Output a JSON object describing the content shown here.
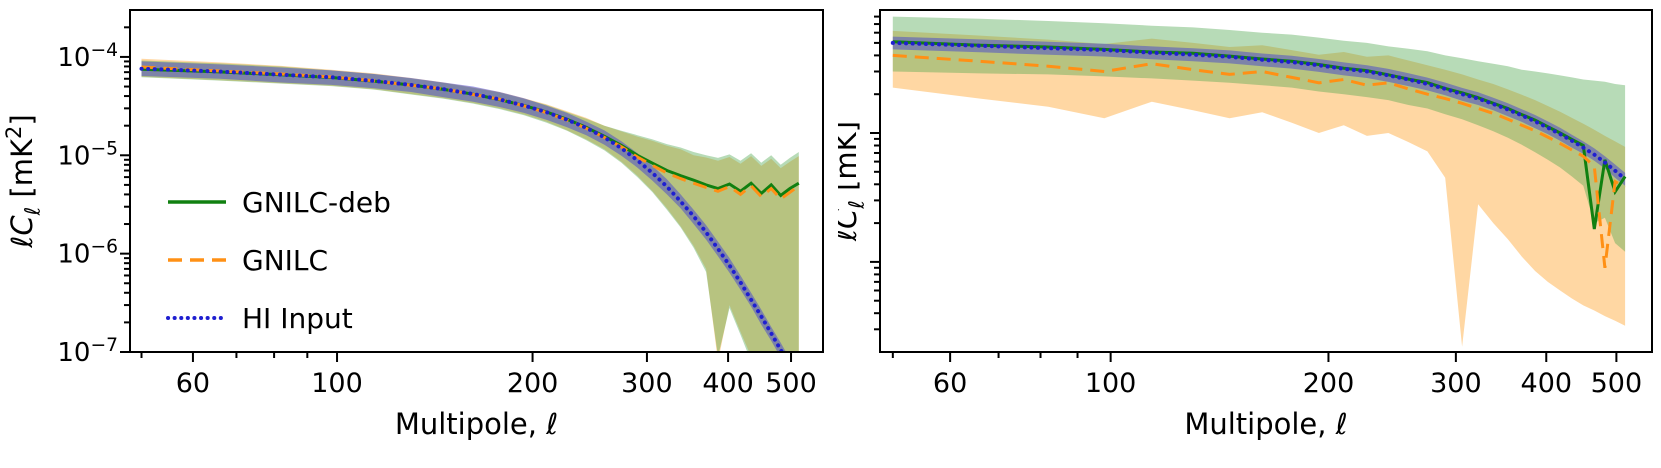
{
  "figure": {
    "background": "#ffffff",
    "description_colors": {
      "gnilc_deb": "#108010",
      "gnilc": "#ff9015",
      "hi_input": "#1f1fd0",
      "band_green": "#4ca64c",
      "band_orange": "#ffa733",
      "band_blue": "#4444d0"
    }
  },
  "chart_data": [
    {
      "type": "line",
      "title": "",
      "xlabel": "Multipole, ℓ",
      "ylabel": "ℓCℓ [mK²]",
      "xlabel_parts": [
        {
          "t": "Multipole, "
        },
        {
          "t": "ℓ",
          "style": "italic"
        }
      ],
      "ylabel_parts": [
        {
          "t": "ℓ",
          "style": "italic"
        },
        {
          "t": "C",
          "style": "italic"
        },
        {
          "t": "ℓ",
          "style": "sub"
        },
        {
          "t": " [mK"
        },
        {
          "t": "2",
          "style": "sup"
        },
        {
          "t": "]"
        }
      ],
      "xscale": "log",
      "yscale": "log",
      "xlim": [
        48,
        560
      ],
      "ylim": [
        1e-07,
        0.0003
      ],
      "xticks": [
        60,
        100,
        200,
        300,
        400,
        500
      ],
      "xminor": [
        50,
        70,
        80,
        90
      ],
      "ytick_exponents": [
        -7,
        -6,
        -5,
        -4
      ],
      "legend": {
        "show": true,
        "position": "lower left",
        "items": [
          "GNILC-deb",
          "GNILC",
          "HI Input"
        ]
      },
      "x": [
        50,
        66,
        82,
        98,
        114,
        130,
        146,
        162,
        178,
        194,
        210,
        226,
        242,
        258,
        274,
        290,
        306,
        322,
        338,
        354,
        370,
        386,
        402,
        418,
        434,
        450,
        466,
        482,
        498,
        514
      ],
      "series": [
        {
          "name": "GNILC-deb",
          "color": "#108010",
          "dash": "solid",
          "values": [
            7.5e-05,
            7.05e-05,
            6.58e-05,
            6.18e-05,
            5.68e-05,
            5.18e-05,
            4.68e-05,
            4.18e-05,
            3.68e-05,
            3.2e-05,
            2.76e-05,
            2.32e-05,
            1.92e-05,
            1.56e-05,
            1.26e-05,
            1e-05,
            8.3e-06,
            7e-06,
            6.2e-06,
            5.6e-06,
            5e-06,
            4.6e-06,
            5.1e-06,
            4.3e-06,
            5.2e-06,
            4.1e-06,
            5e-06,
            3.9e-06,
            4.6e-06,
            5.2e-06
          ]
        },
        {
          "name": "GNILC",
          "color": "#ff9015",
          "dash": "dashed",
          "values": [
            7.9e-05,
            7.2e-05,
            6.7e-05,
            6.25e-05,
            5.72e-05,
            5.15e-05,
            4.72e-05,
            4.15e-05,
            3.72e-05,
            3.18e-05,
            2.72e-05,
            2.28e-05,
            1.88e-05,
            1.52e-05,
            1.22e-05,
            9.6e-06,
            7.9e-06,
            6.6e-06,
            5.8e-06,
            5.2e-06,
            4.7e-06,
            4.3e-06,
            4.8e-06,
            4e-06,
            4.9e-06,
            3.8e-06,
            4.6e-06,
            3.6e-06,
            4.2e-06,
            4.9e-06
          ]
        },
        {
          "name": "HI Input",
          "color": "#1f1fd0",
          "dash": "dotted",
          "values": [
            7.6e-05,
            7.1e-05,
            6.6e-05,
            6.2e-05,
            5.7e-05,
            5.2e-05,
            4.7e-05,
            4.2e-05,
            3.7e-05,
            3.2e-05,
            2.75e-05,
            2.3e-05,
            1.9e-05,
            1.52e-05,
            1.18e-05,
            8.9e-06,
            6.6e-06,
            4.8e-06,
            3.4e-06,
            2.4e-06,
            1.65e-06,
            1.12e-06,
            7.6e-07,
            5.1e-07,
            3.4e-07,
            2.3e-07,
            1.55e-07,
            1.05e-07,
            7.2e-08,
            5e-08
          ]
        }
      ],
      "bands": [
        {
          "name": "GNILC band",
          "color": "#ffa733",
          "opacity": 0.45,
          "upper": [
            9.6e-05,
            8.8e-05,
            8.1e-05,
            7.4e-05,
            6.8e-05,
            6.1e-05,
            5.5e-05,
            4.9e-05,
            4.4e-05,
            3.8e-05,
            3.3e-05,
            2.8e-05,
            2.4e-05,
            2e-05,
            1.75e-05,
            1.55e-05,
            1.4e-05,
            1.25e-05,
            1.15e-05,
            1e-05,
            9.5e-06,
            8.8e-06,
            9.6e-06,
            8.2e-06,
            9.8e-06,
            7.8e-06,
            9.2e-06,
            7.4e-06,
            8.6e-06,
            9.8e-06
          ],
          "lower": [
            6.3e-05,
            5.8e-05,
            5.4e-05,
            5.1e-05,
            4.7e-05,
            4.2e-05,
            3.8e-05,
            3.4e-05,
            3e-05,
            2.6e-05,
            2.2e-05,
            1.8e-05,
            1.45e-05,
            1.15e-05,
            8.6e-06,
            6.2e-06,
            4.3e-06,
            2.9e-06,
            1.9e-06,
            1.2e-06,
            7e-07,
            8e-08,
            3e-07,
            1.6e-07,
            9e-08,
            2e-08,
            5.5e-08,
            3.5e-08,
            2.5e-08,
            1.8e-08
          ]
        },
        {
          "name": "GNILC-deb band",
          "color": "#4ca64c",
          "opacity": 0.4,
          "upper": [
            9.2e-05,
            8.6e-05,
            8e-05,
            7.3e-05,
            6.7e-05,
            6.05e-05,
            5.45e-05,
            4.85e-05,
            4.35e-05,
            3.75e-05,
            3.25e-05,
            2.75e-05,
            2.35e-05,
            2e-05,
            1.78e-05,
            1.6e-05,
            1.45e-05,
            1.3e-05,
            1.2e-05,
            1.08e-05,
            1e-05,
            9.4e-06,
            1.02e-05,
            8.8e-06,
            1.05e-05,
            8.4e-06,
            1e-05,
            8e-06,
            9.4e-06,
            1.08e-05
          ],
          "lower": [
            6.2e-05,
            5.75e-05,
            5.35e-05,
            5.05e-05,
            4.65e-05,
            4.15e-05,
            3.75e-05,
            3.35e-05,
            2.95e-05,
            2.55e-05,
            2.15e-05,
            1.78e-05,
            1.42e-05,
            1.12e-05,
            8.4e-06,
            6e-06,
            4.2e-06,
            2.8e-06,
            1.85e-06,
            1.15e-06,
            6.5e-07,
            9e-08,
            2.8e-07,
            1.5e-07,
            8e-08,
            2.5e-08,
            5e-08,
            3.2e-08,
            2.2e-08,
            1.6e-08
          ]
        },
        {
          "name": "HI Input band",
          "color": "#4444d0",
          "opacity": 0.5,
          "upper": [
            9e-05,
            8.4e-05,
            7.8e-05,
            7.3e-05,
            6.7e-05,
            6.1e-05,
            5.5e-05,
            5e-05,
            4.4e-05,
            3.8e-05,
            3.2e-05,
            2.7e-05,
            2.2e-05,
            1.79e-05,
            1.39e-05,
            1.05e-05,
            7.8e-06,
            5.7e-06,
            4e-06,
            2.8e-06,
            1.95e-06,
            1.32e-06,
            9e-07,
            6e-07,
            4e-07,
            2.7e-07,
            1.8e-07,
            1.24e-07,
            8.5e-08,
            5.9e-08
          ],
          "lower": [
            6.4e-05,
            6e-05,
            5.5e-05,
            5.2e-05,
            4.8e-05,
            4.4e-05,
            3.9e-05,
            3.5e-05,
            3.1e-05,
            2.7e-05,
            2.3e-05,
            1.93e-05,
            1.6e-05,
            1.28e-05,
            9.9e-06,
            7.5e-06,
            5.5e-06,
            4e-06,
            2.9e-06,
            2e-06,
            1.39e-06,
            9.4e-07,
            6.4e-07,
            4.3e-07,
            2.9e-07,
            1.9e-07,
            1.3e-07,
            8.8e-08,
            6e-08,
            4.2e-08
          ]
        }
      ]
    },
    {
      "type": "line",
      "title": "",
      "xlabel": "Multipole, ℓ",
      "ylabel": "ℓCℓ [mK]",
      "xlabel_parts": [
        {
          "t": "Multipole, "
        },
        {
          "t": "ℓ",
          "style": "italic"
        }
      ],
      "ylabel_parts": [
        {
          "t": "ℓ",
          "style": "italic"
        },
        {
          "t": "C",
          "style": "italic"
        },
        {
          "t": "ℓ",
          "style": "sub"
        },
        {
          "t": " [mK]"
        }
      ],
      "xscale": "log",
      "yscale": "log",
      "xlim": [
        48,
        560
      ],
      "ylim": [
        0.002,
        0.9
      ],
      "xticks": [
        60,
        100,
        200,
        300,
        400,
        500
      ],
      "xminor": [
        50,
        70,
        80,
        90
      ],
      "ytick_exponents": [],
      "legend": {
        "show": false,
        "items": []
      },
      "x": [
        50,
        66,
        82,
        98,
        114,
        130,
        146,
        162,
        178,
        194,
        210,
        226,
        242,
        258,
        274,
        290,
        306,
        322,
        338,
        354,
        370,
        386,
        402,
        418,
        434,
        450,
        466,
        482,
        498,
        514
      ],
      "series": [
        {
          "name": "GNILC-deb",
          "color": "#108010",
          "dash": "solid",
          "values": [
            0.51,
            0.48,
            0.465,
            0.445,
            0.425,
            0.415,
            0.395,
            0.375,
            0.36,
            0.34,
            0.318,
            0.305,
            0.283,
            0.262,
            0.246,
            0.222,
            0.205,
            0.188,
            0.17,
            0.155,
            0.139,
            0.126,
            0.112,
            0.1,
            0.089,
            0.08,
            0.018,
            0.062,
            0.035,
            0.046
          ]
        },
        {
          "name": "GNILC",
          "color": "#ff9015",
          "dash": "dashed",
          "values": [
            0.4,
            0.36,
            0.33,
            0.3,
            0.345,
            0.31,
            0.285,
            0.3,
            0.27,
            0.245,
            0.26,
            0.235,
            0.245,
            0.22,
            0.2,
            0.185,
            0.17,
            0.155,
            0.142,
            0.128,
            0.115,
            0.104,
            0.093,
            0.083,
            0.074,
            0.066,
            0.055,
            0.009,
            0.042,
            0.038
          ]
        },
        {
          "name": "HI Input",
          "color": "#1f1fd0",
          "dash": "dotted",
          "values": [
            0.5,
            0.475,
            0.455,
            0.44,
            0.42,
            0.405,
            0.39,
            0.37,
            0.355,
            0.335,
            0.315,
            0.3,
            0.28,
            0.26,
            0.24,
            0.22,
            0.2,
            0.185,
            0.168,
            0.152,
            0.137,
            0.123,
            0.11,
            0.098,
            0.087,
            0.077,
            0.068,
            0.059,
            0.051,
            0.044
          ]
        }
      ],
      "bands": [
        {
          "name": "GNILC band",
          "color": "#ffa733",
          "opacity": 0.45,
          "upper": [
            0.62,
            0.57,
            0.53,
            0.49,
            0.54,
            0.5,
            0.465,
            0.48,
            0.44,
            0.405,
            0.425,
            0.39,
            0.4,
            0.365,
            0.335,
            0.31,
            0.285,
            0.26,
            0.24,
            0.218,
            0.198,
            0.18,
            0.162,
            0.146,
            0.131,
            0.118,
            0.106,
            0.095,
            0.086,
            0.078
          ],
          "lower": [
            0.225,
            0.185,
            0.16,
            0.13,
            0.175,
            0.15,
            0.13,
            0.145,
            0.12,
            0.1,
            0.115,
            0.095,
            0.1,
            0.085,
            0.072,
            0.045,
            0.0022,
            0.028,
            0.02,
            0.015,
            0.011,
            0.0085,
            0.007,
            0.006,
            0.0052,
            0.0046,
            0.0042,
            0.0038,
            0.0035,
            0.0032
          ]
        },
        {
          "name": "GNILC-deb band",
          "color": "#4ca64c",
          "opacity": 0.4,
          "upper": [
            0.8,
            0.77,
            0.74,
            0.71,
            0.68,
            0.66,
            0.63,
            0.6,
            0.58,
            0.55,
            0.52,
            0.5,
            0.47,
            0.45,
            0.43,
            0.4,
            0.38,
            0.36,
            0.345,
            0.33,
            0.31,
            0.3,
            0.29,
            0.28,
            0.27,
            0.26,
            0.255,
            0.25,
            0.24,
            0.235
          ],
          "lower": [
            0.3,
            0.29,
            0.285,
            0.275,
            0.265,
            0.255,
            0.245,
            0.235,
            0.225,
            0.21,
            0.2,
            0.19,
            0.18,
            0.165,
            0.155,
            0.14,
            0.128,
            0.115,
            0.103,
            0.092,
            0.081,
            0.071,
            0.062,
            0.054,
            0.046,
            0.039,
            0.02,
            0.022,
            0.014,
            0.012
          ]
        },
        {
          "name": "HI Input band",
          "color": "#4444d0",
          "opacity": 0.5,
          "upper": [
            0.56,
            0.532,
            0.51,
            0.493,
            0.47,
            0.454,
            0.437,
            0.414,
            0.398,
            0.375,
            0.353,
            0.336,
            0.314,
            0.291,
            0.269,
            0.246,
            0.224,
            0.207,
            0.188,
            0.17,
            0.153,
            0.138,
            0.123,
            0.11,
            0.097,
            0.086,
            0.076,
            0.066,
            0.057,
            0.049
          ],
          "lower": [
            0.445,
            0.423,
            0.405,
            0.392,
            0.374,
            0.36,
            0.347,
            0.329,
            0.316,
            0.298,
            0.28,
            0.267,
            0.249,
            0.231,
            0.214,
            0.196,
            0.178,
            0.165,
            0.15,
            0.135,
            0.122,
            0.109,
            0.098,
            0.087,
            0.077,
            0.069,
            0.061,
            0.053,
            0.045,
            0.039
          ]
        }
      ]
    }
  ]
}
